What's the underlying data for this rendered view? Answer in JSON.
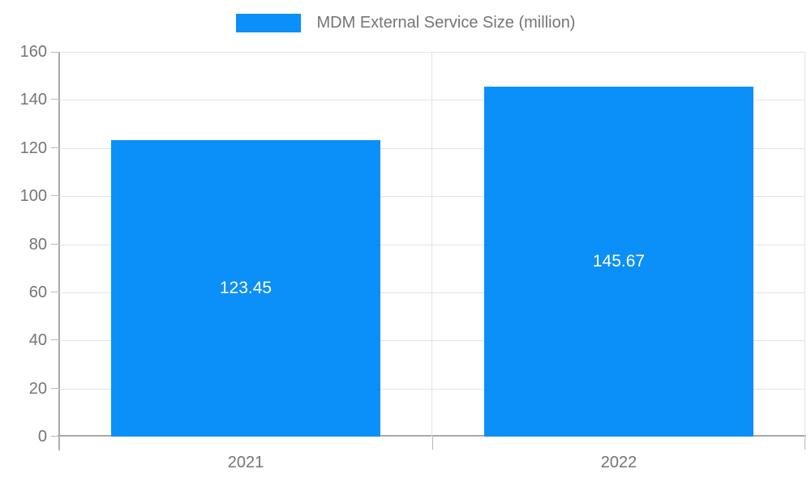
{
  "chart_data": {
    "type": "bar",
    "categories": [
      "2021",
      "2022"
    ],
    "series": [
      {
        "name": "MDM External Service Size (million)",
        "values": [
          123.45,
          145.67
        ]
      }
    ],
    "value_labels": [
      "123.45",
      "145.67"
    ],
    "value_label_position": "inside-center",
    "xlabel": "",
    "ylabel": "",
    "ylim": [
      0,
      160
    ],
    "ytick_interval": 20,
    "ytick_labels": [
      "0",
      "20",
      "40",
      "60",
      "80",
      "100",
      "120",
      "140",
      "160"
    ],
    "grid": true,
    "legend_position": "top-center",
    "bar_width_ratio": 0.72,
    "colors": {
      "bar": "#0b8ff9",
      "grid": "#e4e4e4",
      "axis": "#a8a8a8",
      "tick": "#b8b8b8",
      "axis_text": "#757575",
      "value_label": "#ffffff",
      "background": "#ffffff"
    }
  }
}
